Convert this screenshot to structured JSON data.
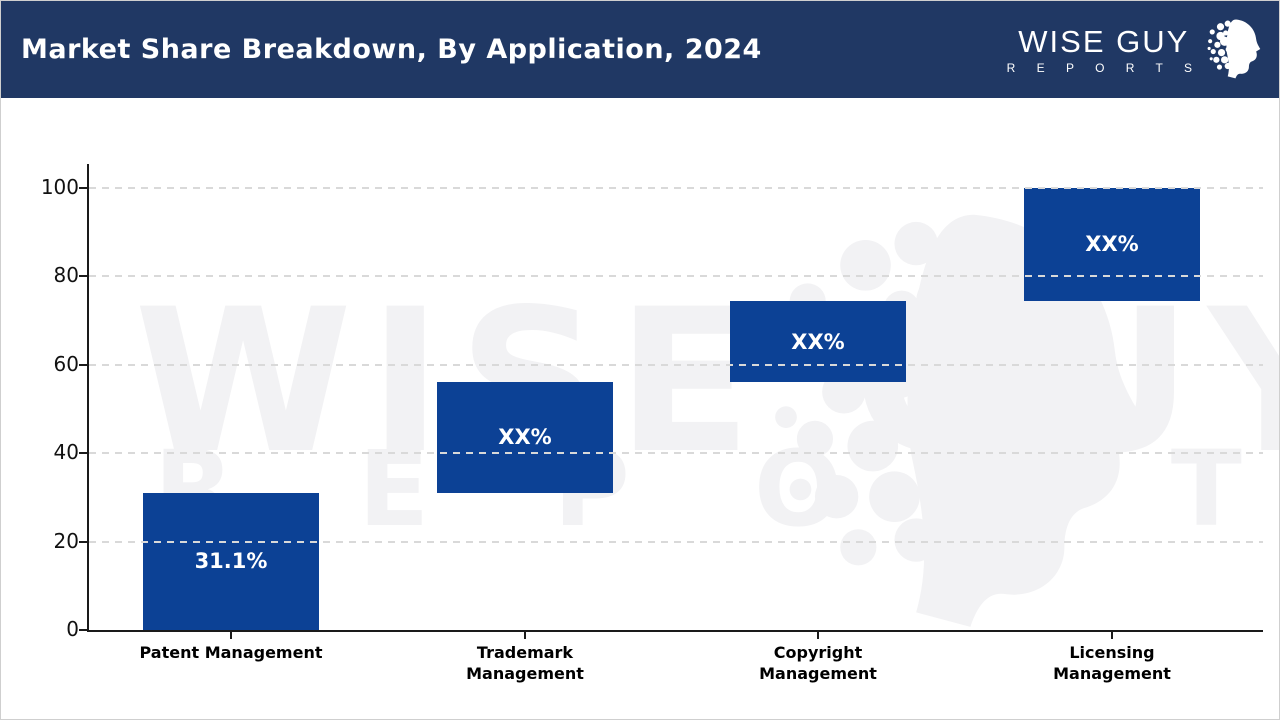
{
  "header": {
    "title": "Market Share Breakdown, By Application, 2024",
    "background_color": "#203864",
    "logo": {
      "line1": "WISE GUY",
      "line2": "R E P O R T S"
    }
  },
  "watermark": {
    "line1": "WISE GUY",
    "line2": "R E P O R T S"
  },
  "chart_data": {
    "type": "bar",
    "subtype": "waterfall",
    "title": "Market Share Breakdown, By Application, 2024",
    "categories": [
      "Patent Management",
      "Trademark Management",
      "Copyright Management",
      "Licensing Management"
    ],
    "category_lines": [
      [
        "Patent Management"
      ],
      [
        "Trademark",
        "Management"
      ],
      [
        "Copyright",
        "Management"
      ],
      [
        "Licensing",
        "Management"
      ]
    ],
    "segments": [
      {
        "category": "Patent Management",
        "start": 0,
        "end": 31.1,
        "label": "31.1%"
      },
      {
        "category": "Trademark Management",
        "start": 31.1,
        "end": 56.0,
        "label": "XX%"
      },
      {
        "category": "Copyright Management",
        "start": 56.0,
        "end": 74.4,
        "label": "XX%"
      },
      {
        "category": "Licensing Management",
        "start": 74.5,
        "end": 100,
        "label": "XX%"
      }
    ],
    "ylim": [
      0,
      100
    ],
    "yticks": [
      0,
      20,
      40,
      60,
      80,
      100
    ],
    "xlabel": "",
    "ylabel": "",
    "grid": "horizontal-dashed",
    "legend": "none",
    "bar_color": "#0c4195",
    "bar_label_color": "#ffffff",
    "gridline_color": "#d9d9d9",
    "axis_color": "#1a1a1a"
  }
}
